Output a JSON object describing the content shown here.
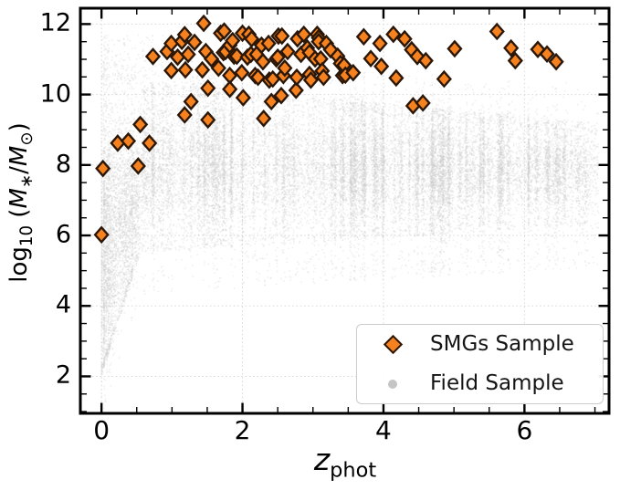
{
  "chart_data": {
    "type": "scatter",
    "title": "",
    "xlabel": "z_phot",
    "xlabel_parts": {
      "base": "z",
      "sub": "phot"
    },
    "ylabel": "log10 (M*/Msun)",
    "ylabel_parts": {
      "fn": "log",
      "fnsub": "10",
      "open": " (",
      "m1": "M",
      "m1sub": "∗",
      "slash": "/",
      "m2": "M",
      "m2sub": "⊙",
      "close": ")"
    },
    "xlim": [
      -0.3,
      7.2
    ],
    "ylim": [
      0.95,
      12.45
    ],
    "x_major_ticks": [
      0,
      2,
      4,
      6
    ],
    "y_major_ticks": [
      2,
      4,
      6,
      8,
      10,
      12
    ],
    "minor_tick_step": 0.5,
    "grid": "major-dotted",
    "grid_color": "#d7d7d7",
    "axis_color": "#000000",
    "legend_position": "lower right",
    "series": [
      {
        "name": "SMGs Sample",
        "marker": "diamond",
        "color": "#F5821E",
        "edge_color": "#2B1708",
        "count": 105,
        "points": [
          [
            0.0,
            6.02
          ],
          [
            0.02,
            7.9
          ],
          [
            0.23,
            8.62
          ],
          [
            0.38,
            8.68
          ],
          [
            0.52,
            7.97
          ],
          [
            0.55,
            9.15
          ],
          [
            0.68,
            8.62
          ],
          [
            0.73,
            11.08
          ],
          [
            0.93,
            11.22
          ],
          [
            0.99,
            11.45
          ],
          [
            0.99,
            10.68
          ],
          [
            1.08,
            11.06
          ],
          [
            1.14,
            11.51
          ],
          [
            1.18,
            11.7
          ],
          [
            1.18,
            9.42
          ],
          [
            1.19,
            10.7
          ],
          [
            1.23,
            11.14
          ],
          [
            1.27,
            9.8
          ],
          [
            1.32,
            11.48
          ],
          [
            1.43,
            10.7
          ],
          [
            1.45,
            12.02
          ],
          [
            1.48,
            11.22
          ],
          [
            1.51,
            10.18
          ],
          [
            1.51,
            9.28
          ],
          [
            1.56,
            11.01
          ],
          [
            1.66,
            10.75
          ],
          [
            1.69,
            11.74
          ],
          [
            1.73,
            11.19
          ],
          [
            1.74,
            11.8
          ],
          [
            1.76,
            11.22
          ],
          [
            1.82,
            11.4
          ],
          [
            1.82,
            10.54
          ],
          [
            1.82,
            10.15
          ],
          [
            1.86,
            11.53
          ],
          [
            1.88,
            11.09
          ],
          [
            1.92,
            11.09
          ],
          [
            1.99,
            10.62
          ],
          [
            2.0,
            11.74
          ],
          [
            2.01,
            9.91
          ],
          [
            2.07,
            11.06
          ],
          [
            2.09,
            11.71
          ],
          [
            2.12,
            11.14
          ],
          [
            2.13,
            11.58
          ],
          [
            2.18,
            10.54
          ],
          [
            2.2,
            11.14
          ],
          [
            2.22,
            10.49
          ],
          [
            2.27,
            11.4
          ],
          [
            2.29,
            10.93
          ],
          [
            2.3,
            9.32
          ],
          [
            2.37,
            11.45
          ],
          [
            2.38,
            10.41
          ],
          [
            2.41,
            9.8
          ],
          [
            2.43,
            10.44
          ],
          [
            2.48,
            11.01
          ],
          [
            2.5,
            11.06
          ],
          [
            2.51,
            11.66
          ],
          [
            2.55,
            9.97
          ],
          [
            2.56,
            11.66
          ],
          [
            2.58,
            10.54
          ],
          [
            2.6,
            10.75
          ],
          [
            2.64,
            11.22
          ],
          [
            2.76,
            10.12
          ],
          [
            2.77,
            10.49
          ],
          [
            2.78,
            11.58
          ],
          [
            2.83,
            11.14
          ],
          [
            2.87,
            11.71
          ],
          [
            2.92,
            11.32
          ],
          [
            2.95,
            11.19
          ],
          [
            2.95,
            10.57
          ],
          [
            2.97,
            10.41
          ],
          [
            3.03,
            11.01
          ],
          [
            3.06,
            11.71
          ],
          [
            3.08,
            11.61
          ],
          [
            3.08,
            11.5
          ],
          [
            3.11,
            11.01
          ],
          [
            3.13,
            10.67
          ],
          [
            3.15,
            10.49
          ],
          [
            3.19,
            11.45
          ],
          [
            3.25,
            11.27
          ],
          [
            3.35,
            11.09
          ],
          [
            3.39,
            10.88
          ],
          [
            3.42,
            10.54
          ],
          [
            3.44,
            10.83
          ],
          [
            3.46,
            10.55
          ],
          [
            3.57,
            10.62
          ],
          [
            3.72,
            11.64
          ],
          [
            3.82,
            11.02
          ],
          [
            3.95,
            11.45
          ],
          [
            3.97,
            10.8
          ],
          [
            4.14,
            11.71
          ],
          [
            4.18,
            10.47
          ],
          [
            4.3,
            11.58
          ],
          [
            4.4,
            11.27
          ],
          [
            4.42,
            9.68
          ],
          [
            4.48,
            11.08
          ],
          [
            4.56,
            9.76
          ],
          [
            4.6,
            10.96
          ],
          [
            4.86,
            10.44
          ],
          [
            5.01,
            11.3
          ],
          [
            5.61,
            11.79
          ],
          [
            5.81,
            11.32
          ],
          [
            5.87,
            10.96
          ],
          [
            6.19,
            11.28
          ],
          [
            6.32,
            11.15
          ],
          [
            6.45,
            10.93
          ]
        ]
      },
      {
        "name": "Field Sample",
        "marker": "circle",
        "color": "#c9c9c9",
        "point_opacity": 0.28,
        "generated": true,
        "count": 26000,
        "seed": 7,
        "distribution": {
          "x_max": 7.05,
          "x_power": 1.25,
          "stripe_fraction": 0.6,
          "stripe_count": 150,
          "low_z_fraction": 0.08,
          "funnel_z_max": 0.55,
          "upper_envelope": [
            10.45,
            -0.18
          ],
          "lower_envelope": [
            5.45,
            0.12
          ],
          "lower_envelope_low_z": [
            2.0,
            6.36
          ],
          "haze_max_logM": 11.7
        }
      }
    ]
  }
}
